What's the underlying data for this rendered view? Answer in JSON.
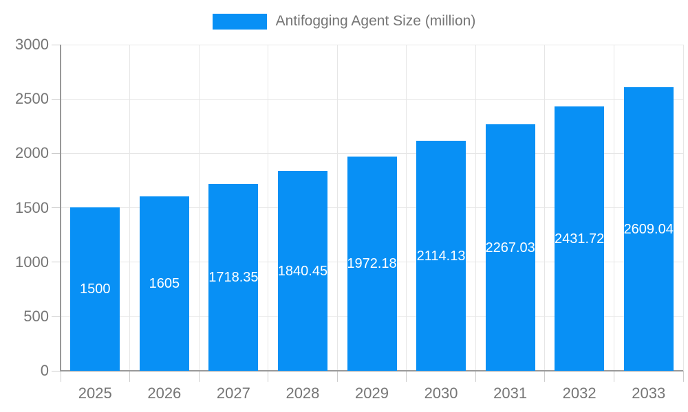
{
  "page": {
    "background": "#ffffff"
  },
  "chart_data": {
    "type": "bar",
    "legend_label": "Antifogging Agent Size (million)",
    "legend_position": "top",
    "categories": [
      "2025",
      "2026",
      "2027",
      "2028",
      "2029",
      "2030",
      "2031",
      "2032",
      "2033"
    ],
    "values": [
      1500,
      1605,
      1718.35,
      1840.45,
      1972.18,
      2114.13,
      2267.03,
      2431.72,
      2609.04
    ],
    "value_labels": [
      "1500",
      "1605",
      "1718.35",
      "1840.45",
      "1972.18",
      "2114.13",
      "2267.03",
      "2431.72",
      "2609.04"
    ],
    "xlabel": "",
    "ylabel": "",
    "ylim": [
      0,
      3000
    ],
    "yticks": [
      0,
      500,
      1000,
      1500,
      2000,
      2500,
      3000
    ],
    "ytick_labels": [
      "0",
      "500",
      "1000",
      "1500",
      "2000",
      "2500",
      "3000"
    ],
    "grid": {
      "horizontal": true,
      "vertical": true
    },
    "value_label_position": "inside-center",
    "colors": {
      "bar": "#0890f5",
      "grid": "#e6e6e6",
      "axis_line": "#999999",
      "tick": "#cccccc",
      "axis_text": "#757575",
      "value_text": "#ffffff"
    }
  }
}
